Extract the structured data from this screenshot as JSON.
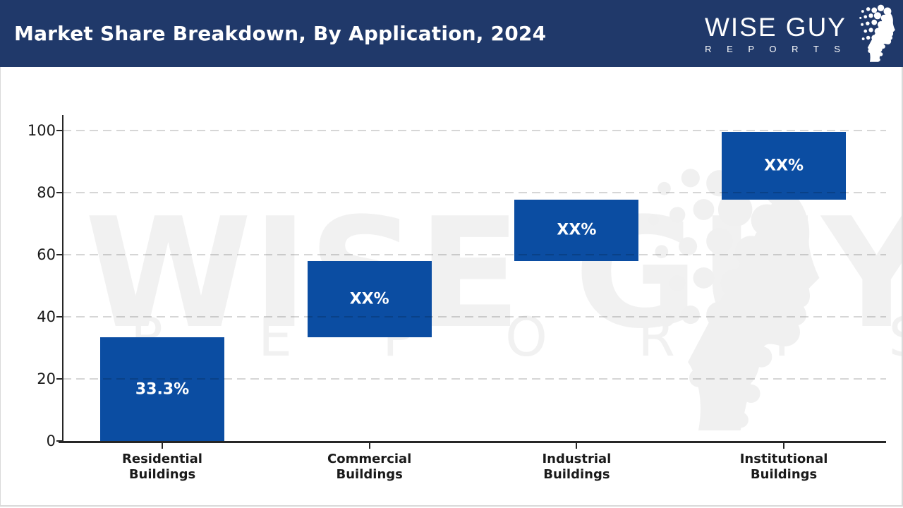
{
  "header": {
    "title": "Market Share Breakdown, By Application, 2024",
    "bg_color": "#20396a",
    "logo": {
      "name": "WISE GUY",
      "sub": "R E P O R T S"
    }
  },
  "watermark": {
    "name": "WISE GUY",
    "sub": "R E P O R T S"
  },
  "chart_data": {
    "type": "bar",
    "variant": "stacked-waterfall",
    "title": "Market Share Breakdown, By Application, 2024",
    "categories": [
      "Residential Buildings",
      "Commercial Buildings",
      "Industrial Buildings",
      "Institutional Buildings"
    ],
    "bars": [
      {
        "category": "Residential Buildings",
        "start": 0,
        "end": 33.3,
        "label": "33.3%"
      },
      {
        "category": "Commercial Buildings",
        "start": 33.3,
        "end": 58.0,
        "label": "XX%"
      },
      {
        "category": "Industrial Buildings",
        "start": 58.0,
        "end": 77.7,
        "label": "XX%"
      },
      {
        "category": "Institutional Buildings",
        "start": 77.7,
        "end": 99.5,
        "label": "XX%"
      }
    ],
    "yticks": [
      0,
      20,
      40,
      60,
      80,
      100
    ],
    "ylim": [
      0,
      105
    ],
    "xlabel": "",
    "ylabel": "",
    "grid": {
      "axis": "y",
      "style": "dashed",
      "on": true
    },
    "legend": null,
    "colors": {
      "bar": "#0b4da2",
      "bar_label": "#ffffff",
      "grid": "#d6d6d6",
      "axis": "#262626",
      "tick_label": "#1a1a1a",
      "header_bg": "#20396a",
      "watermark": "#f1f1f1"
    }
  }
}
